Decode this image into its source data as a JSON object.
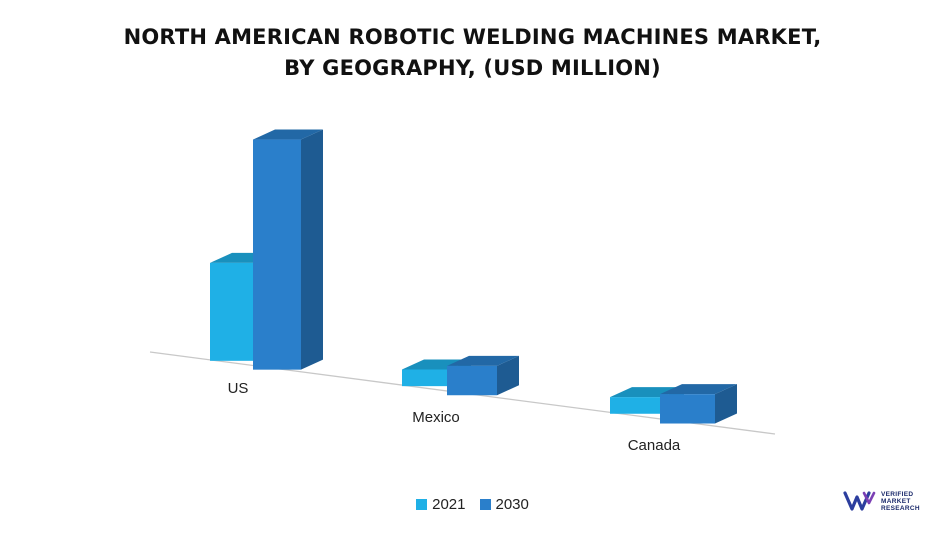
{
  "title_line1": "NORTH AMERICAN ROBOTIC WELDING MACHINES MARKET,",
  "title_line2": "BY GEOGRAPHY, (USD MILLION)",
  "logo": {
    "icon": "vmr-logo-icon",
    "line1": "VERIFIED",
    "line2": "MARKET",
    "line3": "RESEARCH"
  },
  "colors": {
    "series_2021": "#1fb0e6",
    "series_2030": "#2a7fcb"
  },
  "chart_data": {
    "type": "bar",
    "title": "NORTH AMERICAN ROBOTIC WELDING MACHINES MARKET, BY GEOGRAPHY, (USD MILLION)",
    "categories": [
      "US",
      "Mexico",
      "Canada"
    ],
    "series": [
      {
        "name": "2021",
        "values": [
          100,
          17,
          17
        ]
      },
      {
        "name": "2030",
        "values": [
          235,
          30,
          30
        ]
      }
    ],
    "ylim": [
      0,
      240
    ],
    "grid": false,
    "legend": "bottom",
    "style": "3d"
  }
}
